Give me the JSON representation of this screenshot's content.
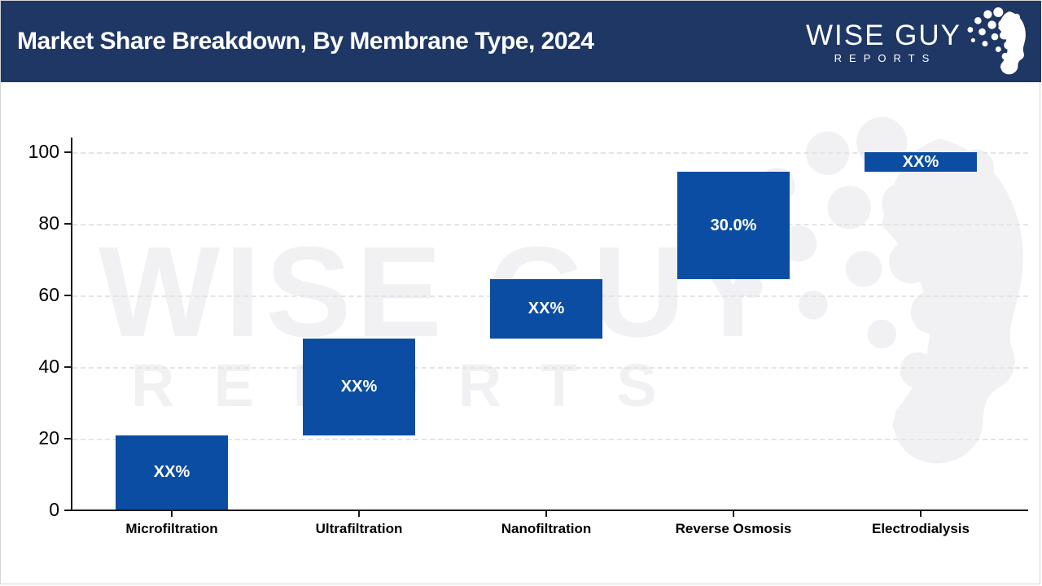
{
  "header": {
    "title": "Market Share Breakdown, By Membrane Type, 2024",
    "logo": {
      "word": "WISE GUY",
      "sub": "REPORTS"
    }
  },
  "watermark": {
    "line1": "WISE GUY",
    "line2": "REPORTS"
  },
  "colors": {
    "header_bg": "#1f3765",
    "bar": "#0b4da2",
    "gridline": "#e4e4e4",
    "axis": "#1a1a1a",
    "watermark": "#f1f1f3",
    "bar_label": "#ffffff"
  },
  "chart_data": {
    "type": "bar",
    "subtype": "waterfall",
    "title": "Market Share Breakdown, By Membrane Type, 2024",
    "xlabel": "",
    "ylabel": "",
    "ylim": [
      0,
      100
    ],
    "yticks": [
      0,
      20,
      40,
      60,
      80,
      100
    ],
    "grid": true,
    "legend": false,
    "categories": [
      "Microfiltration",
      "Ultrafiltration",
      "Nanofiltration",
      "Reverse Osmosis",
      "Electrodialysis"
    ],
    "bars": [
      {
        "category": "Microfiltration",
        "start": 0,
        "end": 21,
        "height": 21,
        "label": "XX%"
      },
      {
        "category": "Ultrafiltration",
        "start": 21,
        "end": 48,
        "height": 27,
        "label": "XX%"
      },
      {
        "category": "Nanofiltration",
        "start": 48,
        "end": 64.5,
        "height": 16.5,
        "label": "XX%"
      },
      {
        "category": "Reverse Osmosis",
        "start": 64.5,
        "end": 94.5,
        "height": 30,
        "label": "30.0%"
      },
      {
        "category": "Electrodialysis",
        "start": 94.5,
        "end": 100,
        "height": 5.5,
        "label": "XX%"
      }
    ]
  }
}
